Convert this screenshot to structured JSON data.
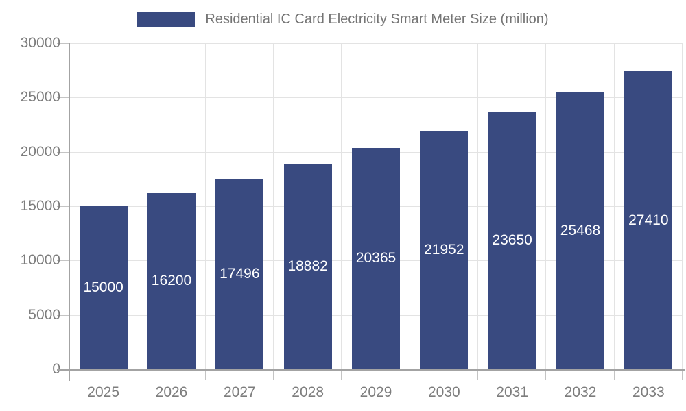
{
  "chart_data": {
    "type": "bar",
    "title": "",
    "legend_label": "Residential IC Card Electricity Smart Meter Size (million)",
    "legend_position": "top-center",
    "categories": [
      "2025",
      "2026",
      "2027",
      "2028",
      "2029",
      "2030",
      "2031",
      "2032",
      "2033"
    ],
    "values": [
      15000,
      16200,
      17496,
      18882,
      20365,
      21952,
      23650,
      25468,
      27410
    ],
    "bar_labels": [
      "15000",
      "16200",
      "17496",
      "18882",
      "20365",
      "21952",
      "23650",
      "25468",
      "27410"
    ],
    "bar_label_position": "inside-center",
    "xlabel": "",
    "ylabel": "",
    "ylim": [
      0,
      30000
    ],
    "yticks": [
      0,
      5000,
      10000,
      15000,
      20000,
      25000,
      30000
    ],
    "grid": true
  },
  "colors": {
    "bar": "#394A80",
    "grid": "#E3E3E3",
    "axis": "#A3A3A3",
    "tick_mark": "#C4C4C4",
    "tick_label": "#7D7D7D",
    "legend_text": "#757575",
    "bar_label": "#FFFFFF",
    "background": "#FFFFFF"
  }
}
